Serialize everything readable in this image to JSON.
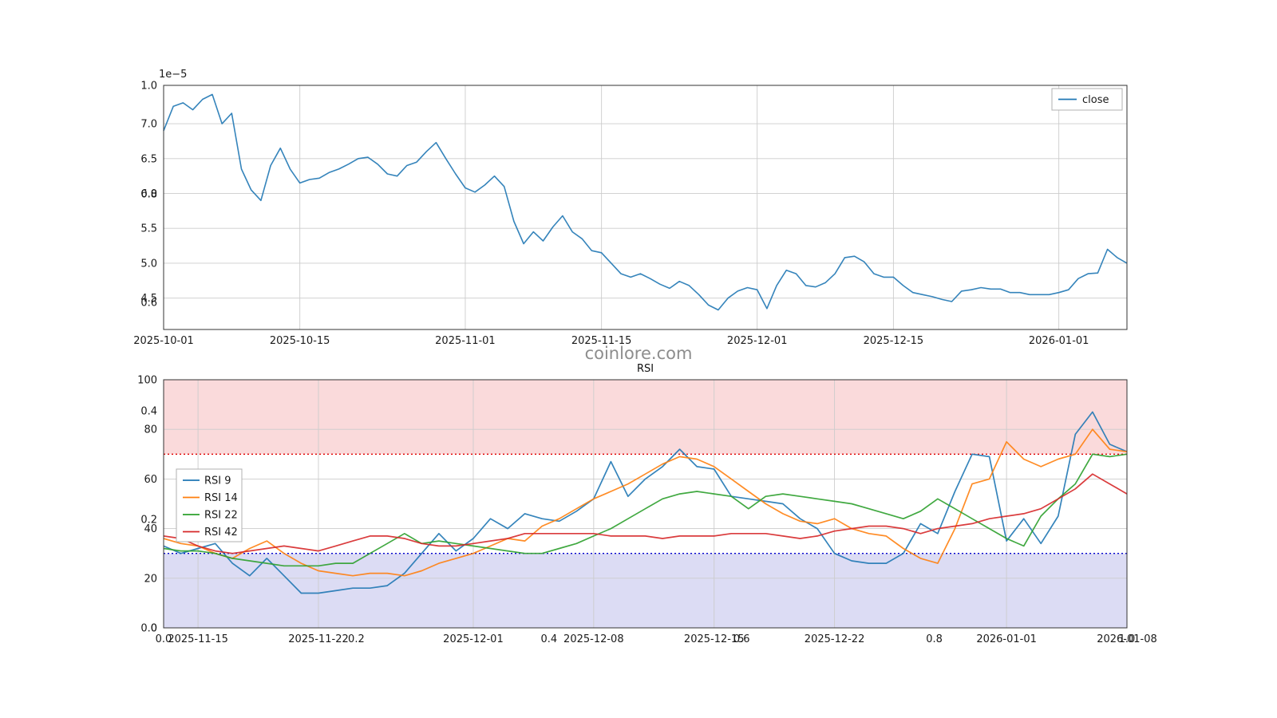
{
  "watermark": "coinlore.com",
  "price_chart": {
    "type": "line",
    "legend_label": "close",
    "line_color": "#1f77b4",
    "y_offset_label": "1e−5",
    "yticks": [
      "7.0",
      "6.5",
      "6.0",
      "5.5",
      "5.0",
      "4.5"
    ],
    "ylim": [
      4.05,
      7.55
    ],
    "grid": true,
    "xticks": [
      "2025-10-01",
      "2025-10-15",
      "2025-11-01",
      "2025-11-15",
      "2025-12-01",
      "2025-12-15",
      "2026-01-01"
    ],
    "dates": [
      "2025-10-01",
      "2025-10-02",
      "2025-10-03",
      "2025-10-04",
      "2025-10-05",
      "2025-10-06",
      "2025-10-07",
      "2025-10-08",
      "2025-10-09",
      "2025-10-10",
      "2025-10-11",
      "2025-10-12",
      "2025-10-13",
      "2025-10-14",
      "2025-10-15",
      "2025-10-16",
      "2025-10-17",
      "2025-10-18",
      "2025-10-19",
      "2025-10-20",
      "2025-10-21",
      "2025-10-22",
      "2025-10-23",
      "2025-10-24",
      "2025-10-25",
      "2025-10-26",
      "2025-10-27",
      "2025-10-28",
      "2025-10-29",
      "2025-10-30",
      "2025-10-31",
      "2025-11-01",
      "2025-11-02",
      "2025-11-03",
      "2025-11-04",
      "2025-11-05",
      "2025-11-06",
      "2025-11-07",
      "2025-11-08",
      "2025-11-09",
      "2025-11-10",
      "2025-11-11",
      "2025-11-12",
      "2025-11-13",
      "2025-11-14",
      "2025-11-15",
      "2025-11-16",
      "2025-11-17",
      "2025-11-18",
      "2025-11-19",
      "2025-11-20",
      "2025-11-21",
      "2025-11-22",
      "2025-11-23",
      "2025-11-24",
      "2025-11-25",
      "2025-11-26",
      "2025-11-27",
      "2025-11-28",
      "2025-11-29",
      "2025-11-30",
      "2025-12-01",
      "2025-12-02",
      "2025-12-03",
      "2025-12-04",
      "2025-12-05",
      "2025-12-06",
      "2025-12-07",
      "2025-12-08",
      "2025-12-09",
      "2025-12-10",
      "2025-12-11",
      "2025-12-12",
      "2025-12-13",
      "2025-12-14",
      "2025-12-15",
      "2025-12-16",
      "2025-12-17",
      "2025-12-18",
      "2025-12-19",
      "2025-12-20",
      "2025-12-21",
      "2025-12-22",
      "2025-12-23",
      "2025-12-24",
      "2025-12-25",
      "2025-12-26",
      "2025-12-27",
      "2025-12-28",
      "2025-12-29",
      "2025-12-30",
      "2025-12-31",
      "2026-01-01",
      "2026-01-02",
      "2026-01-03",
      "2026-01-04",
      "2026-01-05",
      "2026-01-06",
      "2026-01-07",
      "2026-01-08"
    ],
    "close_1e5": [
      6.9,
      7.25,
      7.3,
      7.2,
      7.35,
      7.42,
      7.0,
      7.15,
      6.35,
      6.05,
      5.9,
      6.4,
      6.65,
      6.35,
      6.15,
      6.2,
      6.22,
      6.3,
      6.35,
      6.42,
      6.5,
      6.52,
      6.42,
      6.28,
      6.25,
      6.4,
      6.45,
      6.6,
      6.73,
      6.5,
      6.28,
      6.08,
      6.02,
      6.12,
      6.25,
      6.1,
      5.6,
      5.28,
      5.45,
      5.32,
      5.52,
      5.68,
      5.45,
      5.35,
      5.18,
      5.15,
      5.0,
      4.85,
      4.8,
      4.85,
      4.78,
      4.7,
      4.64,
      4.74,
      4.68,
      4.55,
      4.4,
      4.33,
      4.5,
      4.6,
      4.65,
      4.62,
      4.35,
      4.68,
      4.9,
      4.85,
      4.68,
      4.66,
      4.72,
      4.85,
      5.08,
      5.1,
      5.02,
      4.85,
      4.8,
      4.8,
      4.68,
      4.58,
      4.55,
      4.52,
      4.48,
      4.45,
      4.6,
      4.62,
      4.65,
      4.63,
      4.63,
      4.58,
      4.58,
      4.55,
      4.55,
      4.55,
      4.58,
      4.62,
      4.78,
      4.85,
      4.86,
      5.2,
      5.08,
      5.0
    ]
  },
  "rsi_chart": {
    "type": "line",
    "title": "RSI",
    "yticks": [
      "100",
      "80",
      "60",
      "40",
      "20",
      "0"
    ],
    "ylim": [
      0,
      100
    ],
    "grid": true,
    "overbought_level": 70,
    "oversold_level": 30,
    "overbought_line_color": "#e00000",
    "oversold_line_color": "#0000cc",
    "overbought_band_color": "#fadadb",
    "oversold_band_color": "#dcdcf4",
    "xticks": [
      "2025-11-15",
      "2025-11-22",
      "2025-12-01",
      "2025-12-08",
      "2025-12-15",
      "2025-12-22",
      "2026-01-01",
      "2026-01-08"
    ],
    "dates": [
      "2025-11-13",
      "2025-11-14",
      "2025-11-15",
      "2025-11-16",
      "2025-11-17",
      "2025-11-18",
      "2025-11-19",
      "2025-11-20",
      "2025-11-21",
      "2025-11-22",
      "2025-11-23",
      "2025-11-24",
      "2025-11-25",
      "2025-11-26",
      "2025-11-27",
      "2025-11-28",
      "2025-11-29",
      "2025-11-30",
      "2025-12-01",
      "2025-12-02",
      "2025-12-03",
      "2025-12-04",
      "2025-12-05",
      "2025-12-06",
      "2025-12-07",
      "2025-12-08",
      "2025-12-09",
      "2025-12-10",
      "2025-12-11",
      "2025-12-12",
      "2025-12-13",
      "2025-12-14",
      "2025-12-15",
      "2025-12-16",
      "2025-12-17",
      "2025-12-18",
      "2025-12-19",
      "2025-12-20",
      "2025-12-21",
      "2025-12-22",
      "2025-12-23",
      "2025-12-24",
      "2025-12-25",
      "2025-12-26",
      "2025-12-27",
      "2025-12-28",
      "2025-12-29",
      "2025-12-30",
      "2025-12-31",
      "2026-01-01",
      "2026-01-02",
      "2026-01-03",
      "2026-01-04",
      "2026-01-05",
      "2026-01-06",
      "2026-01-07",
      "2026-01-08"
    ],
    "series": [
      {
        "name": "RSI 9",
        "color": "#1f77b4",
        "values": [
          33,
          30,
          32,
          34,
          26,
          21,
          28,
          21,
          14,
          14,
          15,
          16,
          16,
          17,
          22,
          30,
          38,
          31,
          36,
          44,
          40,
          46,
          44,
          43,
          47,
          52,
          67,
          53,
          60,
          65,
          72,
          65,
          64,
          53,
          52,
          51,
          50,
          44,
          40,
          30,
          27,
          26,
          26,
          30,
          42,
          38,
          55,
          70,
          69,
          35,
          44,
          34,
          45,
          78,
          87,
          74,
          71
        ]
      },
      {
        "name": "RSI 14",
        "color": "#ff7f0e",
        "values": [
          36,
          34,
          33,
          30,
          28,
          32,
          35,
          30,
          26,
          23,
          22,
          21,
          22,
          22,
          21,
          23,
          26,
          28,
          30,
          33,
          36,
          35,
          41,
          44,
          48,
          52,
          55,
          58,
          62,
          66,
          69,
          68,
          65,
          60,
          55,
          50,
          46,
          43,
          42,
          44,
          40,
          38,
          37,
          32,
          28,
          26,
          40,
          58,
          60,
          75,
          68,
          65,
          68,
          70,
          80,
          72,
          71
        ]
      },
      {
        "name": "RSI 22",
        "color": "#2ca02c",
        "values": [
          32,
          31,
          31,
          30,
          28,
          27,
          26,
          25,
          25,
          25,
          26,
          26,
          30,
          34,
          38,
          34,
          35,
          34,
          33,
          32,
          31,
          30,
          30,
          32,
          34,
          37,
          40,
          44,
          48,
          52,
          54,
          55,
          54,
          53,
          48,
          53,
          54,
          53,
          52,
          51,
          50,
          48,
          46,
          44,
          47,
          52,
          48,
          44,
          40,
          36,
          33,
          45,
          52,
          58,
          70,
          69,
          70
        ]
      },
      {
        "name": "RSI 42",
        "color": "#d62728",
        "values": [
          37,
          36,
          33,
          31,
          30,
          31,
          32,
          33,
          32,
          31,
          33,
          35,
          37,
          37,
          36,
          34,
          33,
          33,
          34,
          35,
          36,
          38,
          38,
          38,
          38,
          38,
          37,
          37,
          37,
          36,
          37,
          37,
          37,
          38,
          38,
          38,
          37,
          36,
          37,
          39,
          40,
          41,
          41,
          40,
          38,
          40,
          41,
          42,
          44,
          45,
          46,
          48,
          52,
          56,
          62,
          58,
          54
        ]
      }
    ]
  },
  "overlay_axis": {
    "vertical_ticks": [
      "1.0",
      "0.8",
      "0.6",
      "0.4",
      "0.2",
      "0.0"
    ],
    "horizontal_ticks": [
      "0.0",
      "0.2",
      "0.4",
      "0.6",
      "0.8",
      "1.0"
    ]
  },
  "style": {
    "grid_color": "#cccccc",
    "frame_color": "#333333",
    "text_color": "#1a1a1a",
    "legend_border_color": "#b0b0b0"
  }
}
